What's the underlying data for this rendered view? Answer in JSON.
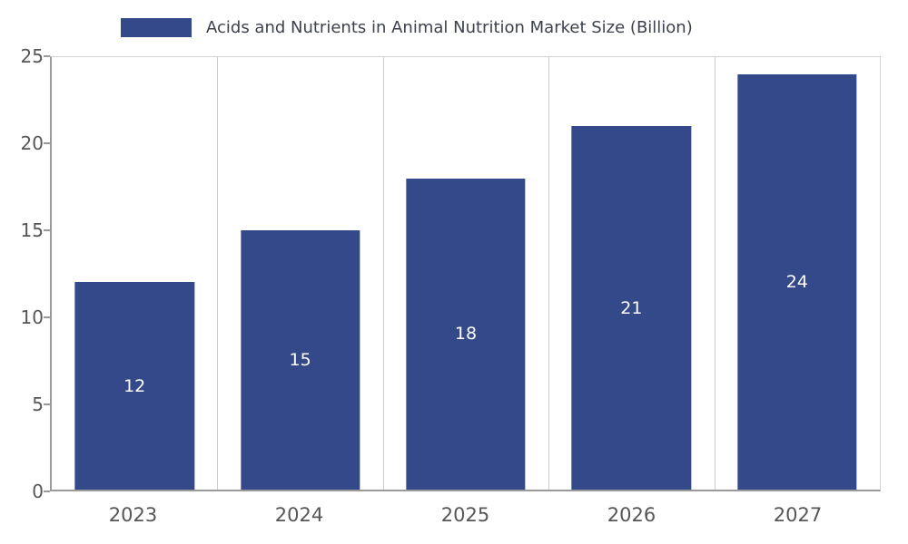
{
  "legend": {
    "label": "Acids and Nutrients in Animal Nutrition Market Size (Billion)"
  },
  "colors": {
    "bar": "#33498a",
    "value_label": "#ffffff",
    "grid": "#cccccc",
    "tick_text": "#565656",
    "legend_text": "#3d414e"
  },
  "chart_data": {
    "type": "bar",
    "title": "Acids and Nutrients in Animal Nutrition Market Size (Billion)",
    "categories": [
      "2023",
      "2024",
      "2025",
      "2026",
      "2027"
    ],
    "values": [
      12,
      15,
      18,
      21,
      24
    ],
    "xlabel": "",
    "ylabel": "",
    "ylim": [
      0,
      25
    ],
    "yticks": [
      0,
      5,
      10,
      15,
      20,
      25
    ],
    "grid": "vertical",
    "legend_position": "top",
    "bar_color": "#33498a",
    "value_labels": "inside-center-white"
  }
}
